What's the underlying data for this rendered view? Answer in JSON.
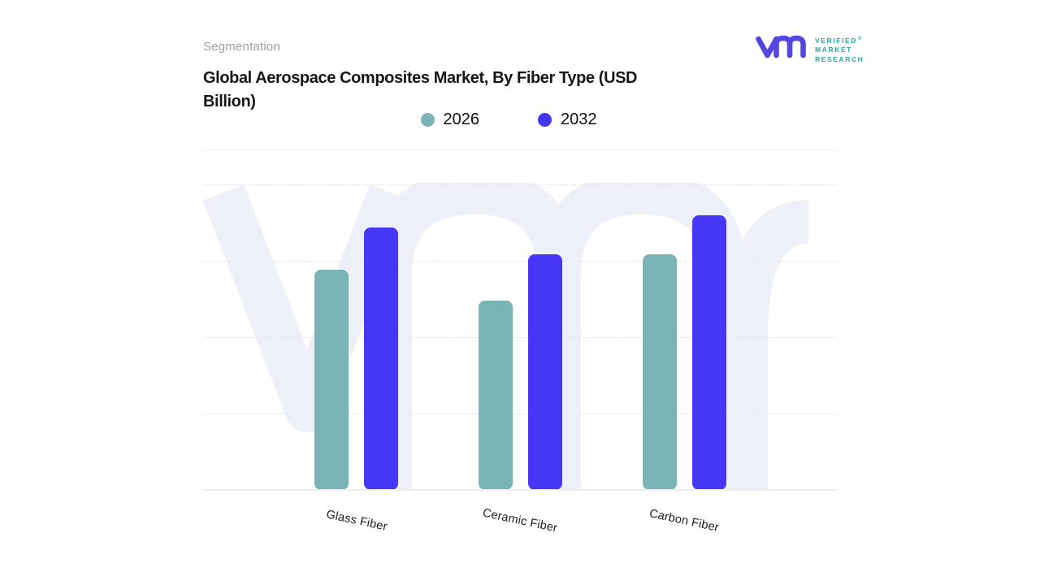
{
  "header": {
    "eyebrow": "Segmentation",
    "title_lines": [
      "Global Aerospace Composites Market, By Fiber Type (USD",
      "Billion)"
    ]
  },
  "logo": {
    "lines": [
      "VERIFIED",
      "MARKET",
      "RESEARCH"
    ],
    "registered_mark": "®",
    "glyph_color": "#5546e2",
    "text_color": "#2fa69f"
  },
  "watermark": {
    "color": "#edeff9"
  },
  "chart_data": {
    "type": "bar",
    "title": "Global Aerospace Composites Market, By Fiber Type (USD Billion)",
    "categories": [
      "Glass Fiber",
      "Ceramic Fiber",
      "Carbon Fiber"
    ],
    "series": [
      {
        "name": "2026",
        "color": "#7ab3b6",
        "values": [
          72,
          62,
          77
        ]
      },
      {
        "name": "2032",
        "color": "#4736f3",
        "values": [
          86,
          77,
          90
        ]
      }
    ],
    "xlabel": "",
    "ylabel": "",
    "ylim": [
      0,
      100
    ],
    "gridlines": [
      25,
      50,
      75,
      100
    ],
    "grid_style": "dashed",
    "value_axis_visible": false,
    "legend_position": "top",
    "note": "No numeric value axis is shown in the figure; values are relative bar heights where the top dashed gridline = 100."
  }
}
